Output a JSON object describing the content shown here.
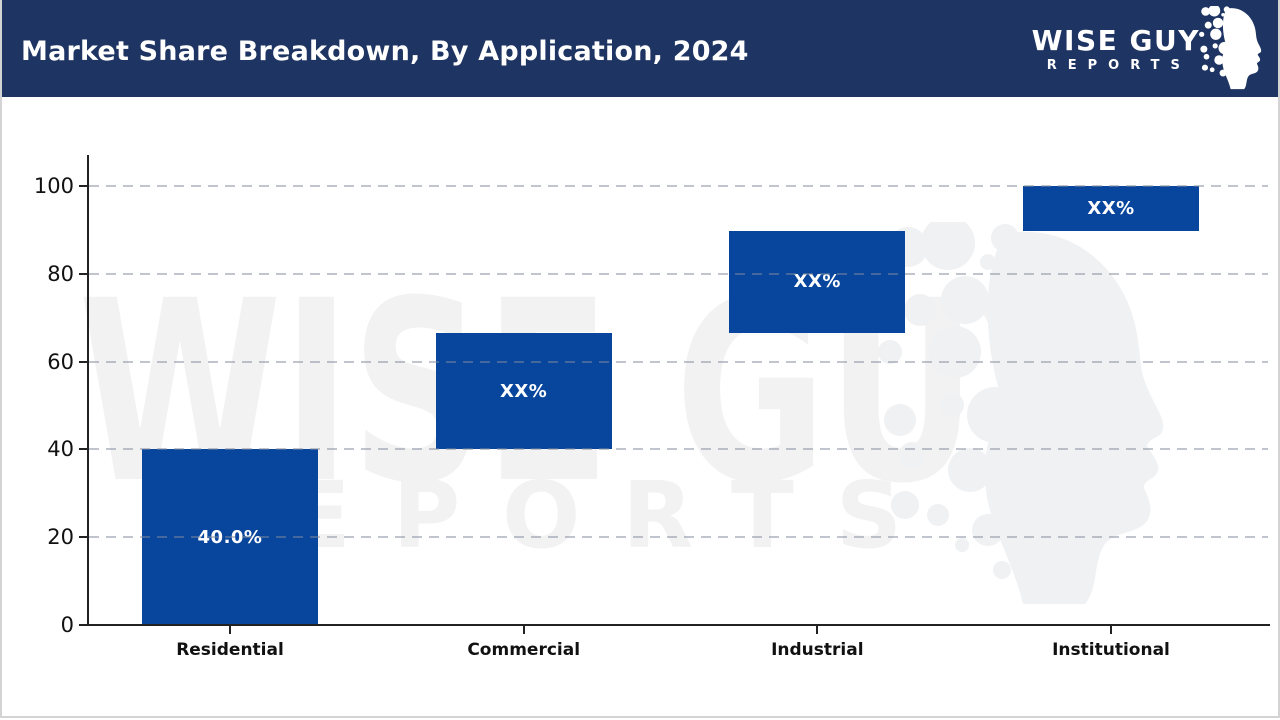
{
  "header": {
    "title": "Market Share Breakdown, By Application, 2024",
    "bg_color": "#1e3462",
    "text_color": "#ffffff",
    "logo": {
      "wordmark": "WISE GUY",
      "subtext": "REPORTS"
    }
  },
  "watermark": {
    "wordmark": "WISE GUY",
    "subtext": "REPORTS",
    "color": "#f2f2f3"
  },
  "chart_data": {
    "type": "bar",
    "subtype": "waterfall",
    "title": "Market Share Breakdown, By Application, 2024",
    "xlabel": "",
    "ylabel": "",
    "categories": [
      "Residential",
      "Commercial",
      "Industrial",
      "Institutional"
    ],
    "segments": [
      {
        "category": "Residential",
        "start": 0,
        "end": 40,
        "label": "40.0%"
      },
      {
        "category": "Commercial",
        "start": 40,
        "end": 66.5,
        "label": "XX%"
      },
      {
        "category": "Industrial",
        "start": 66.5,
        "end": 89.8,
        "label": "XX%"
      },
      {
        "category": "Institutional",
        "start": 89.8,
        "end": 100,
        "label": "XX%"
      }
    ],
    "yticks": [
      0,
      20,
      40,
      60,
      80,
      100
    ],
    "ylim": [
      0,
      107
    ],
    "grid": "horizontal-dashed",
    "legend": null,
    "bar_color": "#08459c",
    "bar_label_color": "#ffffff",
    "axis_color": "#222222",
    "grid_color": "#d2d2d2"
  }
}
